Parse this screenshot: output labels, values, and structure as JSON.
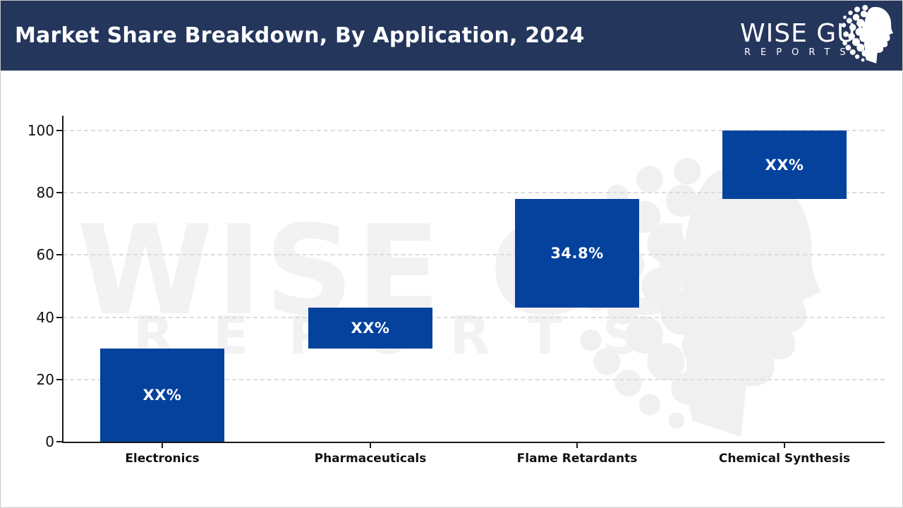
{
  "header": {
    "title": "Market Share Breakdown, By Application, 2024",
    "logo": {
      "wordmark": "WISE GUY",
      "subtext": "REPORTS"
    }
  },
  "watermark": {
    "wordmark": "WISE GUY",
    "subtext": "REPORTS"
  },
  "chart_data": {
    "type": "bar",
    "subtype": "waterfall",
    "title": "Market Share Breakdown, By Application, 2024",
    "categories": [
      "Electronics",
      "Pharmaceuticals",
      "Flame Retardants",
      "Chemical Synthesis"
    ],
    "segments": [
      {
        "category": "Electronics",
        "start": 0,
        "end": 30,
        "label": "XX%"
      },
      {
        "category": "Pharmaceuticals",
        "start": 30,
        "end": 43,
        "label": "XX%"
      },
      {
        "category": "Flame Retardants",
        "start": 43,
        "end": 78,
        "label": "34.8%",
        "value": 34.8
      },
      {
        "category": "Chemical Synthesis",
        "start": 78,
        "end": 100,
        "label": "XX%"
      }
    ],
    "yticks": [
      0,
      20,
      40,
      60,
      80,
      100
    ],
    "ylim": [
      0,
      104
    ],
    "xlabel": "",
    "ylabel": "",
    "grid": "horizontal-dashed",
    "legend": "none"
  },
  "colors": {
    "header_bg": "#24365c",
    "bar": "#04429d",
    "bar_label": "#ffffff",
    "grid": "#dcdcdc",
    "axis": "#1a1a1a",
    "watermark": "#f2f2f2",
    "page_border": "#c9c9c9",
    "title_text": "#ffffff"
  }
}
